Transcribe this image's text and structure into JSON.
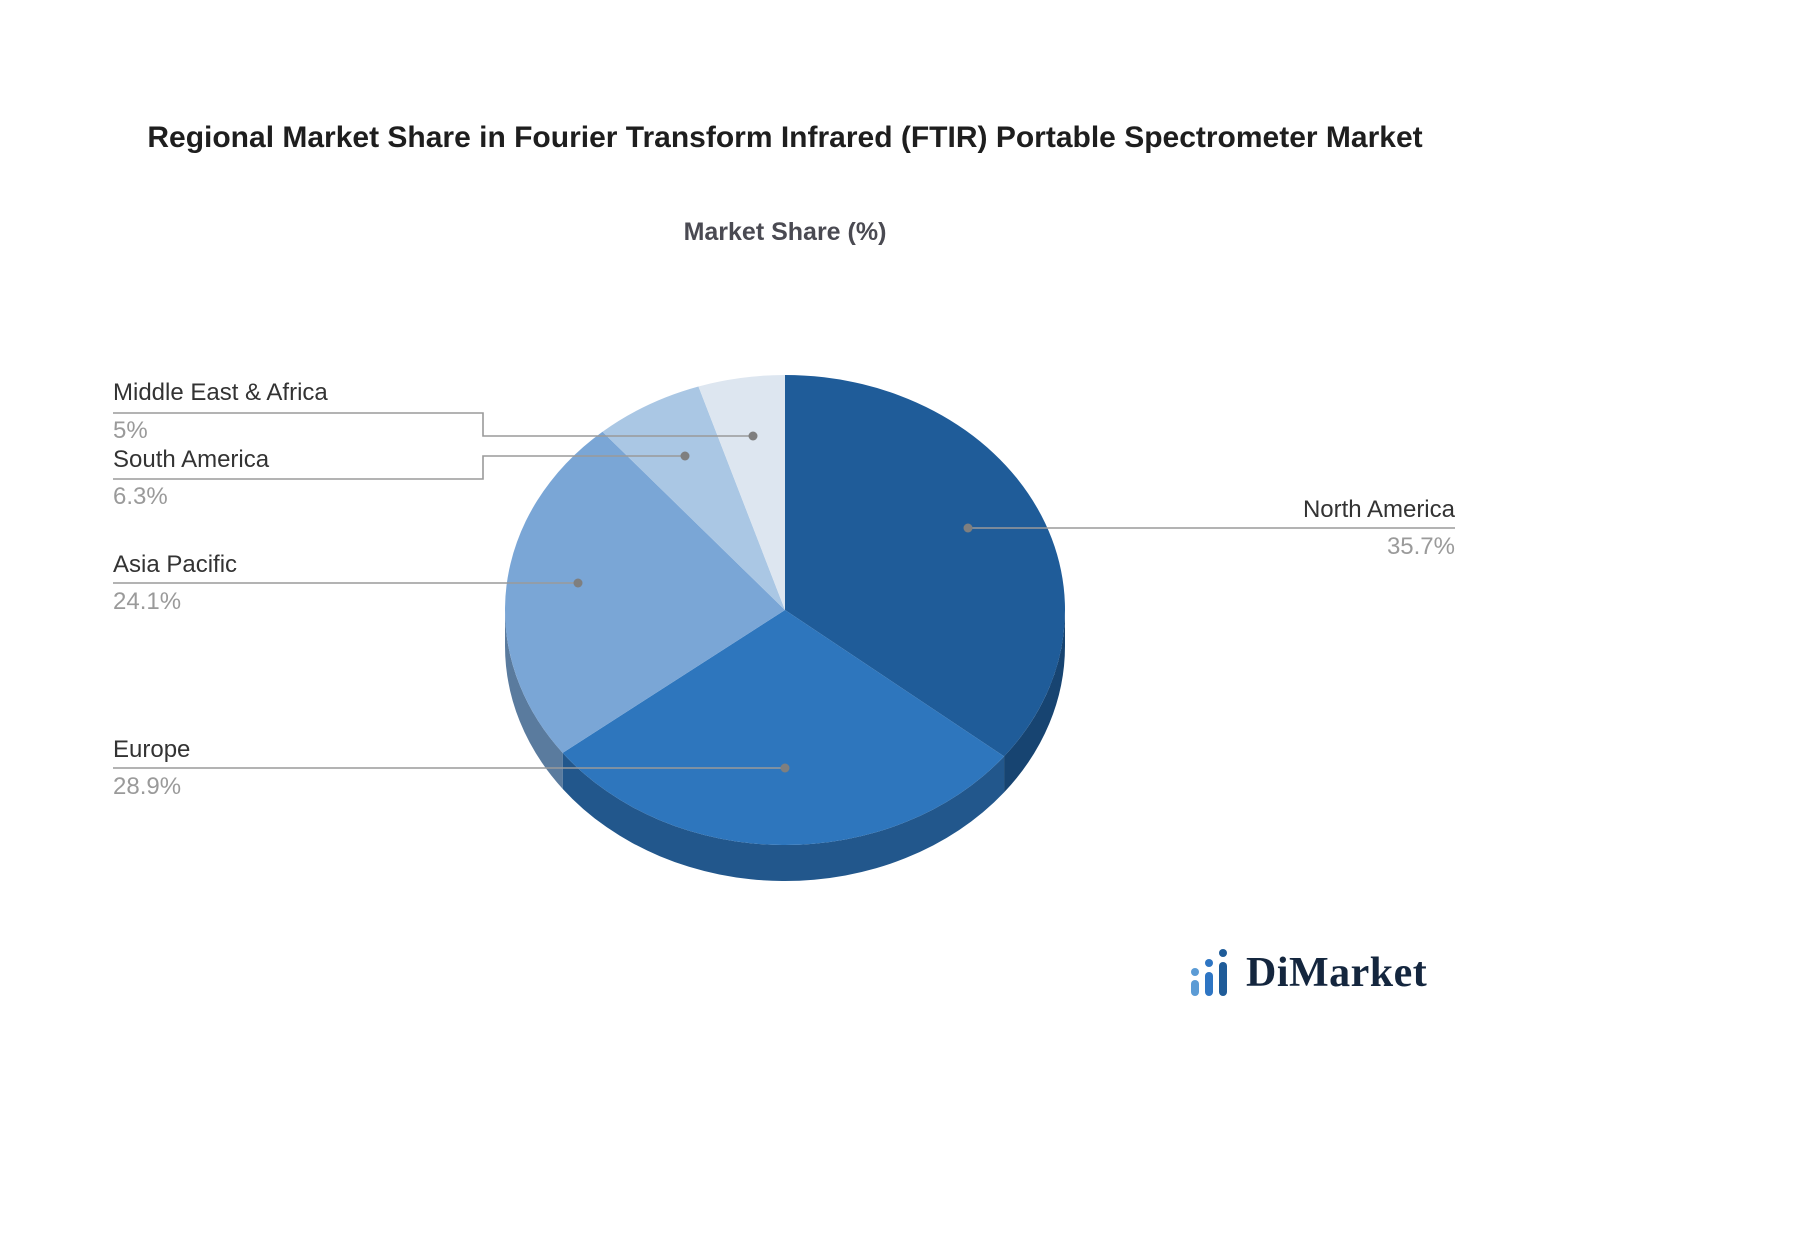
{
  "chart_data": {
    "type": "pie",
    "title": "Regional Market Share in Fourier Transform Infrared (FTIR) Portable Spectrometer Market",
    "subtitle": "Market Share (%)",
    "unit": "%",
    "style": "3d-pie",
    "legend": "none",
    "labels": "leader-lines",
    "start_angle_deg": -90,
    "direction": "clockwise",
    "slices": [
      {
        "label": "North America",
        "value": 35.7,
        "display": "35.7%",
        "color": "#1f5c99"
      },
      {
        "label": "Europe",
        "value": 28.9,
        "display": "28.9%",
        "color": "#2e76bd"
      },
      {
        "label": "Asia Pacific",
        "value": 24.1,
        "display": "24.1%",
        "color": "#7aa6d6"
      },
      {
        "label": "South America",
        "value": 6.3,
        "display": "6.3%",
        "color": "#aac7e4"
      },
      {
        "label": "Middle East & Africa",
        "value": 5,
        "display": "5%",
        "color": "#dde6f0"
      }
    ]
  },
  "brand": {
    "name": "DiMarket"
  }
}
